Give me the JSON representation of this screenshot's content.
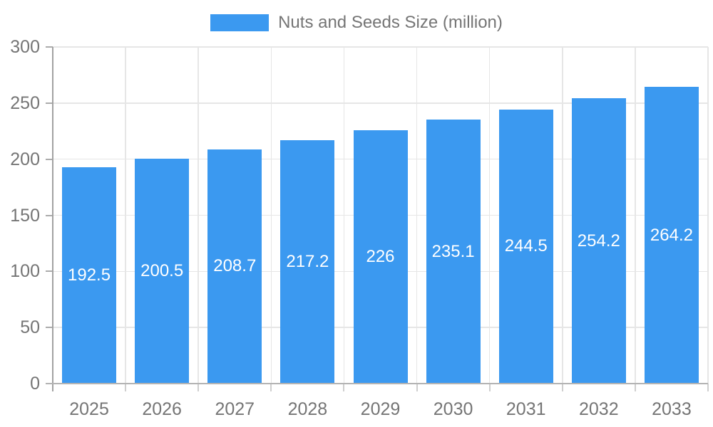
{
  "legend": {
    "label": "Nuts and Seeds Size (million)"
  },
  "colors": {
    "bar": "#3b99f0",
    "grid": "#e6e6e6",
    "y_axis": "#a2a2a2",
    "x_axis": "#b3b3b3",
    "tick_text": "#757575",
    "value_label_text": "#ffffff"
  },
  "chart_data": {
    "type": "bar",
    "title": "",
    "categories": [
      "2025",
      "2026",
      "2027",
      "2028",
      "2029",
      "2030",
      "2031",
      "2032",
      "2033"
    ],
    "series": [
      {
        "name": "Nuts and Seeds Size (million)",
        "values": [
          192.5,
          200.5,
          208.7,
          217.2,
          226,
          235.1,
          244.5,
          254.2,
          264.2
        ]
      }
    ],
    "xlabel": "",
    "ylabel": "",
    "ylim": [
      0,
      300
    ],
    "ytick_step": 50,
    "grid": true,
    "legend_position": "top",
    "value_labels": "inside-center"
  }
}
